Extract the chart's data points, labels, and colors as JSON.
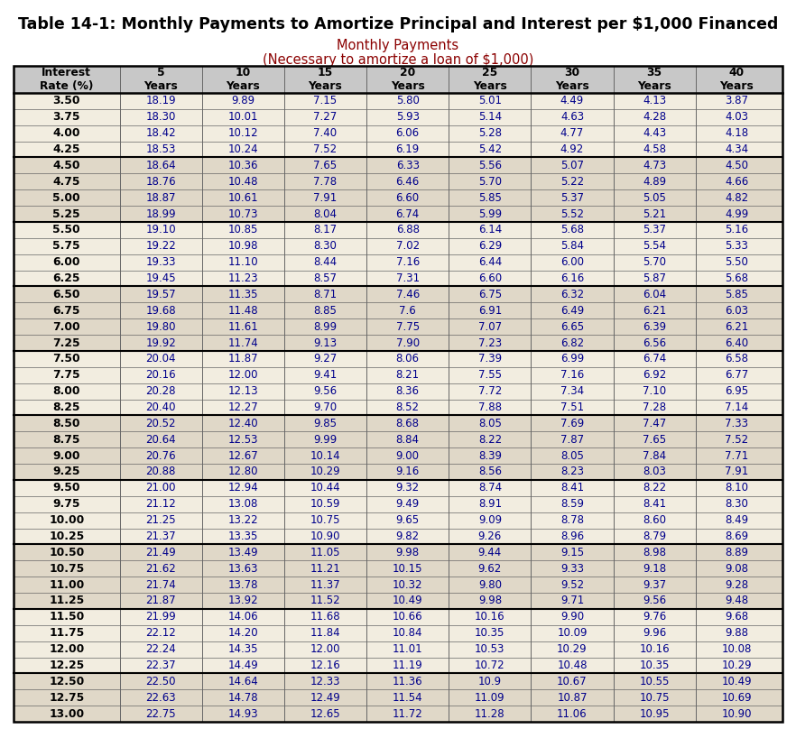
{
  "title": "Table 14-1: Monthly Payments to Amortize Principal and Interest per $1,000 Financed",
  "subtitle_line1": "Monthly Payments",
  "subtitle_line2": "(Necessary to amortize a loan of $1,000)",
  "col_headers": [
    "Interest\nRate (%)",
    "5\nYears",
    "10\nYears",
    "15\nYears",
    "20\nYears",
    "25\nYears",
    "30\nYears",
    "35\nYears",
    "40\nYears"
  ],
  "rows": [
    [
      "3.50",
      "18.19",
      "9.89",
      "7.15",
      "5.80",
      "5.01",
      "4.49",
      "4.13",
      "3.87"
    ],
    [
      "3.75",
      "18.30",
      "10.01",
      "7.27",
      "5.93",
      "5.14",
      "4.63",
      "4.28",
      "4.03"
    ],
    [
      "4.00",
      "18.42",
      "10.12",
      "7.40",
      "6.06",
      "5.28",
      "4.77",
      "4.43",
      "4.18"
    ],
    [
      "4.25",
      "18.53",
      "10.24",
      "7.52",
      "6.19",
      "5.42",
      "4.92",
      "4.58",
      "4.34"
    ],
    [
      "4.50",
      "18.64",
      "10.36",
      "7.65",
      "6.33",
      "5.56",
      "5.07",
      "4.73",
      "4.50"
    ],
    [
      "4.75",
      "18.76",
      "10.48",
      "7.78",
      "6.46",
      "5.70",
      "5.22",
      "4.89",
      "4.66"
    ],
    [
      "5.00",
      "18.87",
      "10.61",
      "7.91",
      "6.60",
      "5.85",
      "5.37",
      "5.05",
      "4.82"
    ],
    [
      "5.25",
      "18.99",
      "10.73",
      "8.04",
      "6.74",
      "5.99",
      "5.52",
      "5.21",
      "4.99"
    ],
    [
      "5.50",
      "19.10",
      "10.85",
      "8.17",
      "6.88",
      "6.14",
      "5.68",
      "5.37",
      "5.16"
    ],
    [
      "5.75",
      "19.22",
      "10.98",
      "8.30",
      "7.02",
      "6.29",
      "5.84",
      "5.54",
      "5.33"
    ],
    [
      "6.00",
      "19.33",
      "11.10",
      "8.44",
      "7.16",
      "6.44",
      "6.00",
      "5.70",
      "5.50"
    ],
    [
      "6.25",
      "19.45",
      "11.23",
      "8.57",
      "7.31",
      "6.60",
      "6.16",
      "5.87",
      "5.68"
    ],
    [
      "6.50",
      "19.57",
      "11.35",
      "8.71",
      "7.46",
      "6.75",
      "6.32",
      "6.04",
      "5.85"
    ],
    [
      "6.75",
      "19.68",
      "11.48",
      "8.85",
      "7.6",
      "6.91",
      "6.49",
      "6.21",
      "6.03"
    ],
    [
      "7.00",
      "19.80",
      "11.61",
      "8.99",
      "7.75",
      "7.07",
      "6.65",
      "6.39",
      "6.21"
    ],
    [
      "7.25",
      "19.92",
      "11.74",
      "9.13",
      "7.90",
      "7.23",
      "6.82",
      "6.56",
      "6.40"
    ],
    [
      "7.50",
      "20.04",
      "11.87",
      "9.27",
      "8.06",
      "7.39",
      "6.99",
      "6.74",
      "6.58"
    ],
    [
      "7.75",
      "20.16",
      "12.00",
      "9.41",
      "8.21",
      "7.55",
      "7.16",
      "6.92",
      "6.77"
    ],
    [
      "8.00",
      "20.28",
      "12.13",
      "9.56",
      "8.36",
      "7.72",
      "7.34",
      "7.10",
      "6.95"
    ],
    [
      "8.25",
      "20.40",
      "12.27",
      "9.70",
      "8.52",
      "7.88",
      "7.51",
      "7.28",
      "7.14"
    ],
    [
      "8.50",
      "20.52",
      "12.40",
      "9.85",
      "8.68",
      "8.05",
      "7.69",
      "7.47",
      "7.33"
    ],
    [
      "8.75",
      "20.64",
      "12.53",
      "9.99",
      "8.84",
      "8.22",
      "7.87",
      "7.65",
      "7.52"
    ],
    [
      "9.00",
      "20.76",
      "12.67",
      "10.14",
      "9.00",
      "8.39",
      "8.05",
      "7.84",
      "7.71"
    ],
    [
      "9.25",
      "20.88",
      "12.80",
      "10.29",
      "9.16",
      "8.56",
      "8.23",
      "8.03",
      "7.91"
    ],
    [
      "9.50",
      "21.00",
      "12.94",
      "10.44",
      "9.32",
      "8.74",
      "8.41",
      "8.22",
      "8.10"
    ],
    [
      "9.75",
      "21.12",
      "13.08",
      "10.59",
      "9.49",
      "8.91",
      "8.59",
      "8.41",
      "8.30"
    ],
    [
      "10.00",
      "21.25",
      "13.22",
      "10.75",
      "9.65",
      "9.09",
      "8.78",
      "8.60",
      "8.49"
    ],
    [
      "10.25",
      "21.37",
      "13.35",
      "10.90",
      "9.82",
      "9.26",
      "8.96",
      "8.79",
      "8.69"
    ],
    [
      "10.50",
      "21.49",
      "13.49",
      "11.05",
      "9.98",
      "9.44",
      "9.15",
      "8.98",
      "8.89"
    ],
    [
      "10.75",
      "21.62",
      "13.63",
      "11.21",
      "10.15",
      "9.62",
      "9.33",
      "9.18",
      "9.08"
    ],
    [
      "11.00",
      "21.74",
      "13.78",
      "11.37",
      "10.32",
      "9.80",
      "9.52",
      "9.37",
      "9.28"
    ],
    [
      "11.25",
      "21.87",
      "13.92",
      "11.52",
      "10.49",
      "9.98",
      "9.71",
      "9.56",
      "9.48"
    ],
    [
      "11.50",
      "21.99",
      "14.06",
      "11.68",
      "10.66",
      "10.16",
      "9.90",
      "9.76",
      "9.68"
    ],
    [
      "11.75",
      "22.12",
      "14.20",
      "11.84",
      "10.84",
      "10.35",
      "10.09",
      "9.96",
      "9.88"
    ],
    [
      "12.00",
      "22.24",
      "14.35",
      "12.00",
      "11.01",
      "10.53",
      "10.29",
      "10.16",
      "10.08"
    ],
    [
      "12.25",
      "22.37",
      "14.49",
      "12.16",
      "11.19",
      "10.72",
      "10.48",
      "10.35",
      "10.29"
    ],
    [
      "12.50",
      "22.50",
      "14.64",
      "12.33",
      "11.36",
      "10.9",
      "10.67",
      "10.55",
      "10.49"
    ],
    [
      "12.75",
      "22.63",
      "14.78",
      "12.49",
      "11.54",
      "11.09",
      "10.87",
      "10.75",
      "10.69"
    ],
    [
      "13.00",
      "22.75",
      "14.93",
      "12.65",
      "11.72",
      "11.28",
      "11.06",
      "10.95",
      "10.90"
    ]
  ],
  "title_color": "#000000",
  "subtitle_color": "#8B0000",
  "header_bg": "#c8c8c8",
  "header_text_color": "#000000",
  "row_bg_light": "#f2ede0",
  "row_bg_dark": "#e0d8c8",
  "data_color_col1": "#000000",
  "data_color_cols": "#00008B",
  "border_color": "#666666",
  "thick_border_color": "#000000"
}
